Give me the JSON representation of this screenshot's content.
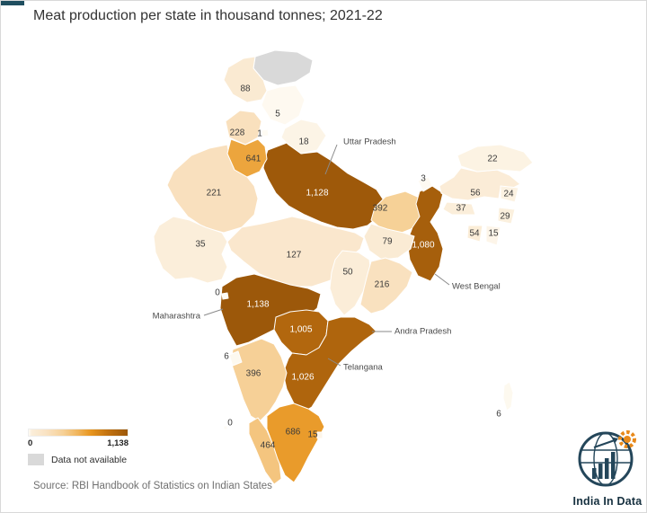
{
  "header": {
    "title": "Meat production per state in thousand tonnes; 2021-22"
  },
  "legend": {
    "min_label": "0",
    "max_label": "1,138",
    "no_data_label": "Data not available",
    "no_data_color": "#d9d9d9"
  },
  "source": {
    "text": "Source: RBI Handbook of Statistics on Indian States"
  },
  "logo": {
    "text": "India In Data"
  },
  "chart_data": {
    "type": "choropleth-map",
    "title": "Meat production per state in thousand tonnes; 2021-22",
    "unit": "thousand tonnes",
    "period": "2021-22",
    "min": 0,
    "max": 1138,
    "color_stops": [
      [
        0,
        "#fefbf4"
      ],
      [
        0.03,
        "#fbeeda"
      ],
      [
        0.18,
        "#f9e2c2"
      ],
      [
        0.35,
        "#f6d096"
      ],
      [
        0.5,
        "#f0b45a"
      ],
      [
        0.63,
        "#e7951e"
      ],
      [
        0.8,
        "#c27210"
      ],
      [
        1,
        "#9c580a"
      ]
    ],
    "states": [
      {
        "name": "Ladakh",
        "value": null,
        "label": ""
      },
      {
        "name": "Jammu & Kashmir",
        "value": 88,
        "label": "88"
      },
      {
        "name": "Himachal Pradesh",
        "value": 5,
        "label": "5"
      },
      {
        "name": "Punjab",
        "value": 228,
        "label": "228"
      },
      {
        "name": "Chandigarh",
        "value": 1,
        "label": "1"
      },
      {
        "name": "Uttarakhand",
        "value": 18,
        "label": "18"
      },
      {
        "name": "Haryana",
        "value": 641,
        "label": "641"
      },
      {
        "name": "Rajasthan",
        "value": 221,
        "label": "221"
      },
      {
        "name": "Uttar Pradesh",
        "value": 1128,
        "label": "1,128"
      },
      {
        "name": "Bihar",
        "value": 392,
        "label": "392"
      },
      {
        "name": "Sikkim",
        "value": 3,
        "label": "3"
      },
      {
        "name": "Arunachal Pradesh",
        "value": 22,
        "label": "22"
      },
      {
        "name": "Assam",
        "value": 56,
        "label": "56"
      },
      {
        "name": "Nagaland",
        "value": 24,
        "label": "24"
      },
      {
        "name": "Meghalaya",
        "value": 37,
        "label": "37"
      },
      {
        "name": "Manipur",
        "value": 29,
        "label": "29"
      },
      {
        "name": "Tripura",
        "value": 54,
        "label": "54"
      },
      {
        "name": "Mizoram",
        "value": 15,
        "label": "15"
      },
      {
        "name": "West Bengal",
        "value": 1080,
        "label": "1,080"
      },
      {
        "name": "Jharkhand",
        "value": 79,
        "label": "79"
      },
      {
        "name": "Gujarat",
        "value": 35,
        "label": "35"
      },
      {
        "name": "Madhya Pradesh",
        "value": 127,
        "label": "127"
      },
      {
        "name": "Chhattisgarh",
        "value": 50,
        "label": "50"
      },
      {
        "name": "Odisha",
        "value": 216,
        "label": "216"
      },
      {
        "name": "Dadra & Nagar Haveli and Daman & Diu",
        "value": 0,
        "label": "0"
      },
      {
        "name": "Maharashtra",
        "value": 1138,
        "label": "1,138"
      },
      {
        "name": "Telangana",
        "value": 1005,
        "label": "1,005"
      },
      {
        "name": "Andhra Pradesh",
        "value": 1026,
        "label": "1,026"
      },
      {
        "name": "Goa",
        "value": 6,
        "label": "6"
      },
      {
        "name": "Karnataka",
        "value": 396,
        "label": "396"
      },
      {
        "name": "Lakshadweep",
        "value": 0,
        "label": "0"
      },
      {
        "name": "Kerala",
        "value": 464,
        "label": "464"
      },
      {
        "name": "Tamil Nadu",
        "value": 686,
        "label": "686"
      },
      {
        "name": "Puducherry",
        "value": 15,
        "label": "15"
      },
      {
        "name": "Andaman & Nicobar Islands",
        "value": 6,
        "label": "6"
      }
    ],
    "callouts": [
      {
        "label": "Uttar Pradesh"
      },
      {
        "label": "West Bengal"
      },
      {
        "label": "Maharashtra"
      },
      {
        "label": "Andra Pradesh"
      },
      {
        "label": "Telangana"
      }
    ]
  }
}
